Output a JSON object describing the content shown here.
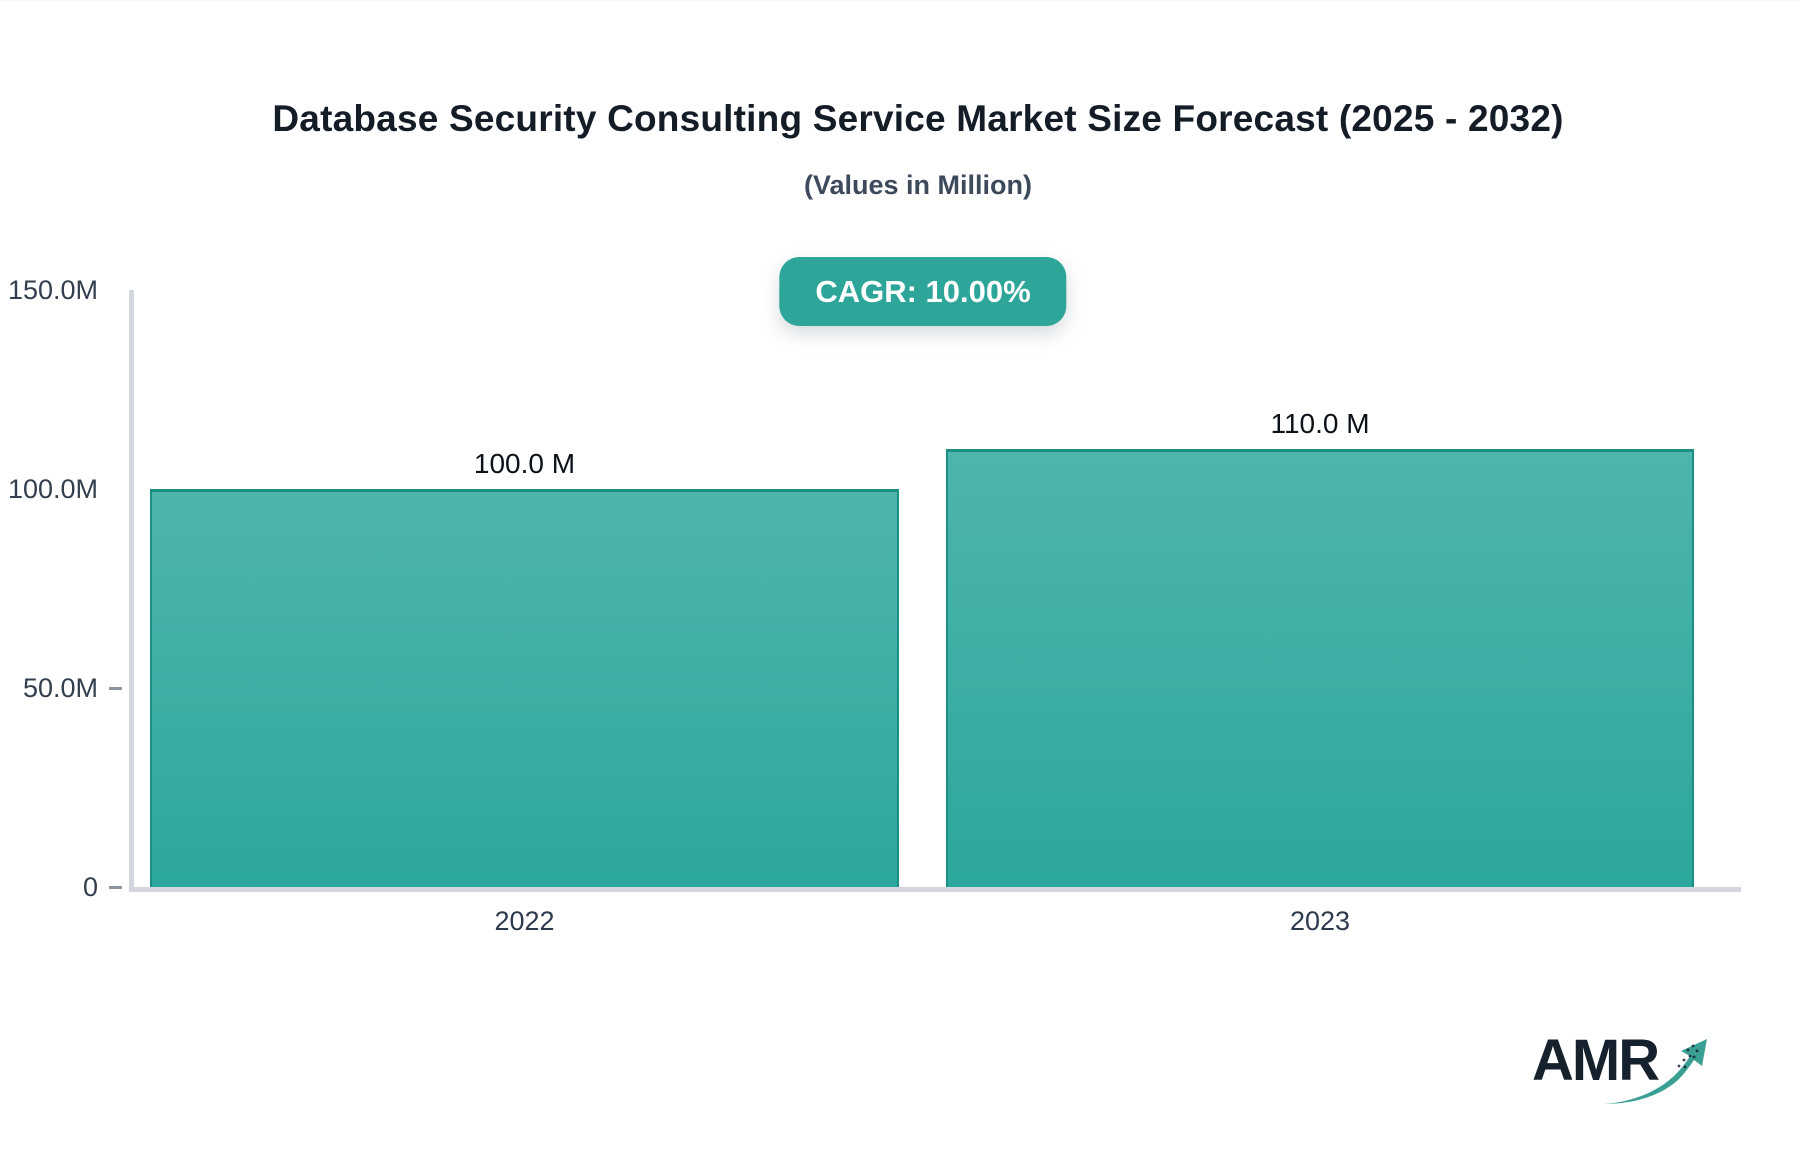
{
  "title": "Database Security Consulting Service Market Size Forecast (2025 - 2032)",
  "subtitle": "(Values in Million)",
  "badge": {
    "label": "CAGR: 10.00%"
  },
  "chart_data": {
    "type": "bar",
    "categories": [
      "2022",
      "2023"
    ],
    "values": [
      100.0,
      110.0
    ],
    "value_labels": [
      "100.0 M",
      "110.0 M"
    ],
    "units": "Million",
    "title": "Database Security Consulting Service Market Size Forecast (2025 - 2032)",
    "xlabel": "",
    "ylabel": "",
    "ylim": [
      0,
      150
    ],
    "grid": false,
    "legend": false,
    "yticks": [
      {
        "value": 150,
        "label": "150.0M",
        "dash": false
      },
      {
        "value": 100,
        "label": "100.0M",
        "dash": false
      },
      {
        "value": 50,
        "label": "50.0M",
        "dash": true
      },
      {
        "value": 0,
        "label": "0",
        "dash": true
      }
    ]
  },
  "logo": {
    "text": "AMR",
    "icon": "trend-up-arrow"
  },
  "colors": {
    "title_text": "#131c27",
    "subtitle_text": "#3d4a5c",
    "badge_bg": "#2da699",
    "badge_text": "#ffffff",
    "bar_fill_top": "#4eb5ab",
    "bar_fill_bottom": "#2ca79b",
    "bar_border": "#1a8f85",
    "axis_text": "#333f50",
    "axis_line": "#d3d6de",
    "logo_navy": "#16212e",
    "logo_arrow_teal": "#3aa094"
  }
}
